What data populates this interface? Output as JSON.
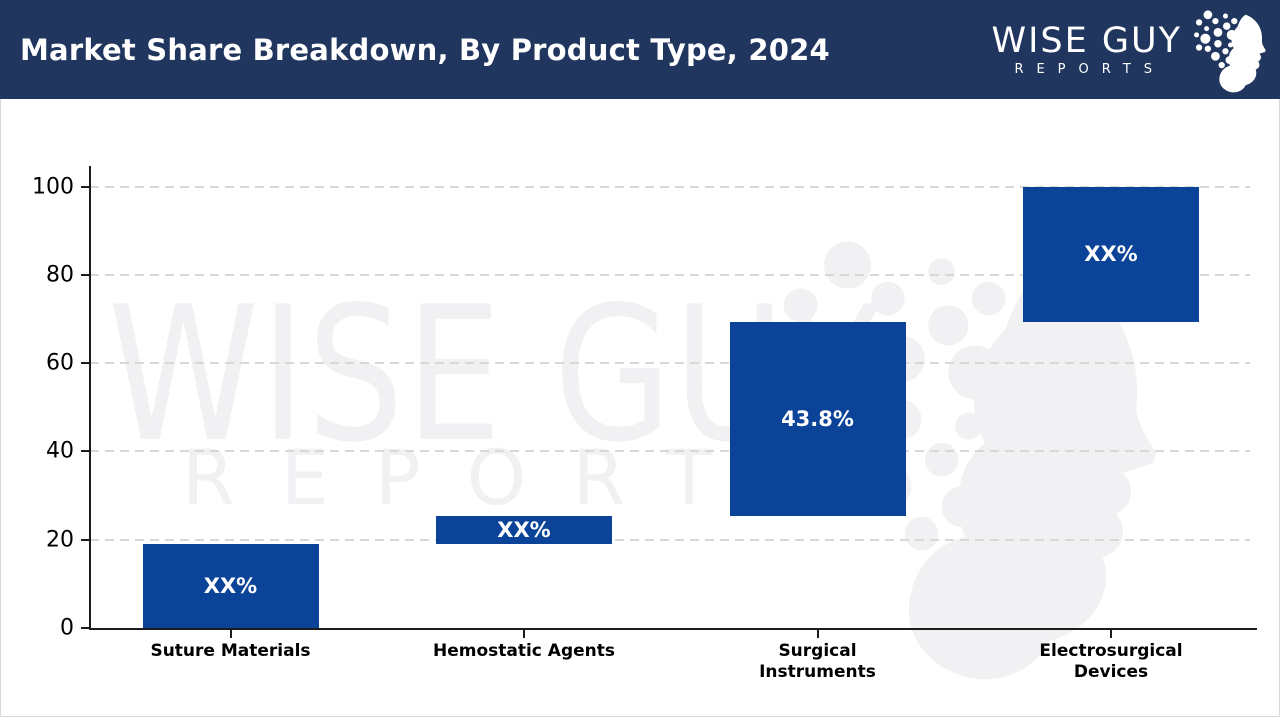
{
  "header": {
    "title": "Market Share Breakdown, By Product Type, 2024",
    "logo": {
      "name": "WISE GUY",
      "tagline": "REPORTS"
    }
  },
  "watermark": {
    "name": "WISE GUY",
    "tagline": "REPORTS"
  },
  "colors": {
    "header_bg": "#21365e",
    "title_text": "#ffffff",
    "bar": "#0a4397",
    "bar_label": "#ffffff",
    "grid": "#d8d8d8",
    "axis": "#1c1c1c",
    "tick_text": "#000000",
    "watermark": "#f1f1f4",
    "frame": "#d9d9d9"
  },
  "chart_data": {
    "type": "bar",
    "subtype": "waterfall",
    "title": "Market Share Breakdown, By Product Type, 2024",
    "categories": [
      "Suture Materials",
      "Hemostatic Agents",
      "Surgical\nInstruments",
      "Electrosurgical\nDevices"
    ],
    "series": [
      {
        "name": "Market share (%)",
        "segments": [
          {
            "category": "Suture Materials",
            "start": 0,
            "end": 19,
            "label": "XX%"
          },
          {
            "category": "Hemostatic Agents",
            "start": 19,
            "end": 25.4,
            "label": "XX%"
          },
          {
            "category": "Surgical Instruments",
            "start": 25.4,
            "end": 69.2,
            "label": "43.8%"
          },
          {
            "category": "Electrosurgical Devices",
            "start": 69.2,
            "end": 100,
            "label": "XX%"
          }
        ]
      }
    ],
    "xlabel": "",
    "ylabel": "",
    "ylim": [
      0,
      100
    ],
    "yticks": [
      0,
      20,
      40,
      60,
      80,
      100
    ],
    "grid": true,
    "legend": false
  }
}
